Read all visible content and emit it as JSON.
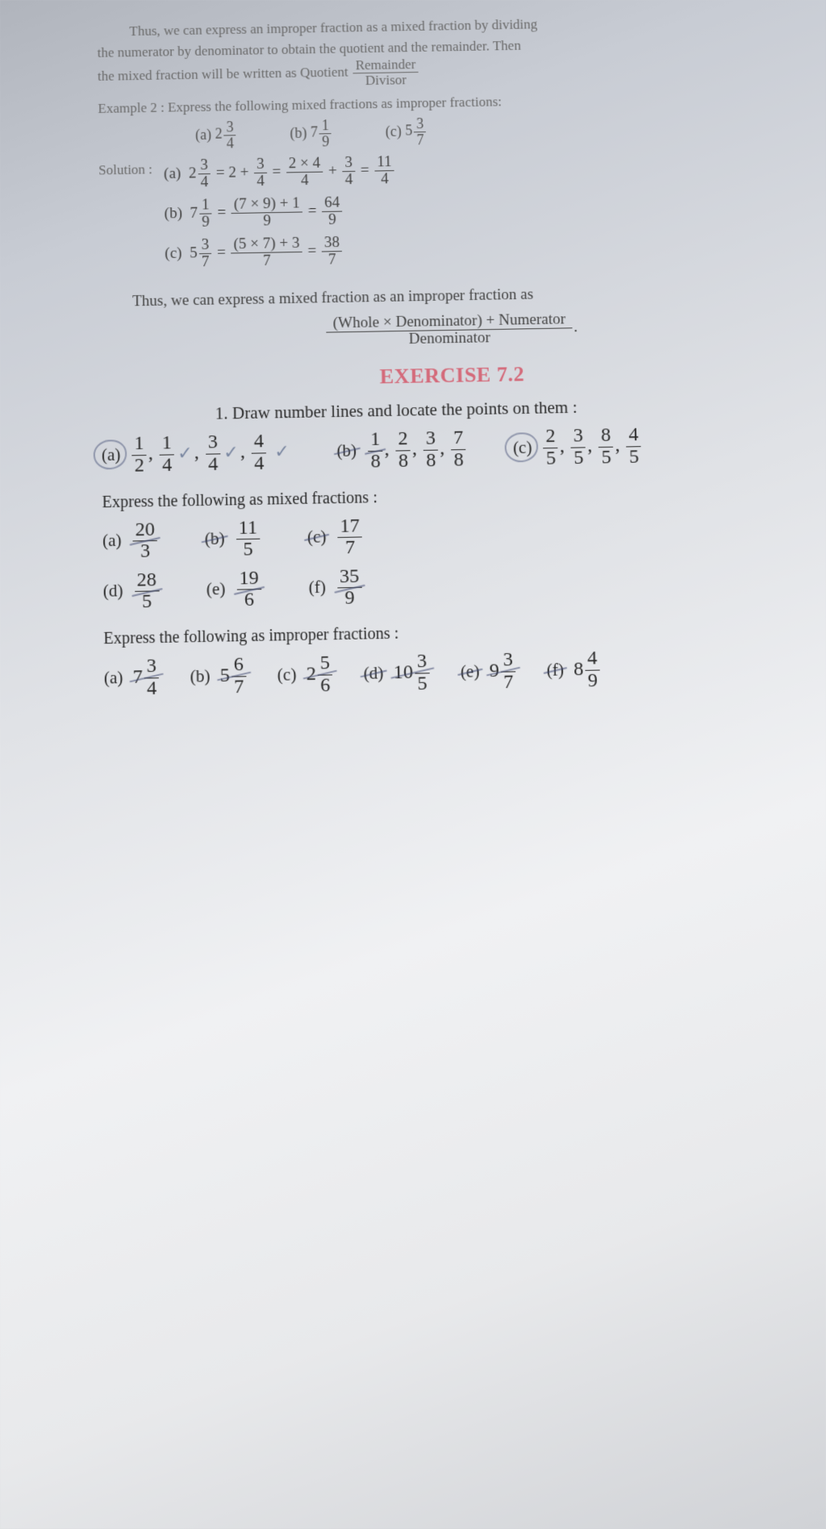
{
  "intro": {
    "line1": "Thus, we can express an improper fraction as a mixed fraction by dividing",
    "line2": "the numerator by denominator to obtain the quotient and the remainder. Then",
    "line3": "the mixed fraction will be written as Quotient",
    "rem": "Remainder",
    "div": "Divisor"
  },
  "example2": {
    "label": "Example 2 : Express the following mixed fractions as improper fractions:",
    "opts": {
      "a": {
        "lab": "(a)",
        "whole": "2",
        "num": "3",
        "den": "4"
      },
      "b": {
        "lab": "(b)",
        "whole": "7",
        "num": "1",
        "den": "9"
      },
      "c": {
        "lab": "(c)",
        "whole": "5",
        "num": "3",
        "den": "7"
      }
    }
  },
  "solution": {
    "label": "Solution :",
    "a": {
      "lab": "(a)",
      "lhsW": "2",
      "lhsN": "3",
      "lhsD": "4",
      "mid1": "2 +",
      "mid1N": "3",
      "mid1D": "4",
      "mid2N": "2 × 4",
      "mid2D": "4",
      "plus": "+",
      "mid3N": "3",
      "mid3D": "4",
      "eq": "=",
      "resN": "11",
      "resD": "4"
    },
    "b": {
      "lab": "(b)",
      "lhsW": "7",
      "lhsN": "1",
      "lhsD": "9",
      "midN": "(7 × 9) + 1",
      "midD": "9",
      "eq": "=",
      "resN": "64",
      "resD": "9"
    },
    "c": {
      "lab": "(c)",
      "lhsW": "5",
      "lhsN": "3",
      "lhsD": "7",
      "midN": "(5 × 7) + 3",
      "midD": "7",
      "eq": "=",
      "resN": "38",
      "resD": "7"
    }
  },
  "thus": {
    "line1": "Thus, we can express a mixed fraction as an improper fraction as",
    "formulaN": "(Whole × Denominator) + Numerator",
    "formulaD": "Denominator",
    "dot": "."
  },
  "exercise": {
    "title": "EXERCISE 7.2"
  },
  "q1": {
    "text": "1.   Draw number lines and locate the points on them :",
    "setA": {
      "lab": "(a)",
      "f1n": "1",
      "f1d": "2",
      "f2n": "1",
      "f2d": "4",
      "f3n": "3",
      "f3d": "4",
      "f4n": "4",
      "f4d": "4"
    },
    "setB": {
      "lab": "(b)",
      "f1n": "1",
      "f1d": "8",
      "f2n": "2",
      "f2d": "8",
      "f3n": "3",
      "f3d": "8",
      "f4n": "7",
      "f4d": "8"
    },
    "setC": {
      "lab": "(c)",
      "f1n": "2",
      "f1d": "5",
      "f2n": "3",
      "f2d": "5",
      "f3n": "8",
      "f3d": "5",
      "f4n": "4",
      "f4d": "5"
    }
  },
  "q2": {
    "text": "Express the following as mixed fractions :",
    "a": {
      "lab": "(a)",
      "n": "20",
      "d": "3"
    },
    "b": {
      "lab": "(b)",
      "n": "11",
      "d": "5"
    },
    "c": {
      "lab": "(c)",
      "n": "17",
      "d": "7"
    },
    "d": {
      "lab": "(d)",
      "n": "28",
      "d": "5"
    },
    "e": {
      "lab": "(e)",
      "n": "19",
      "d": "6"
    },
    "f": {
      "lab": "(f)",
      "n": "35",
      "d": "9"
    }
  },
  "q3": {
    "text": "Express the following as improper fractions :",
    "a": {
      "lab": "(a)",
      "w": "7",
      "n": "3",
      "d": "4"
    },
    "b": {
      "lab": "(b)",
      "w": "5",
      "n": "6",
      "d": "7"
    },
    "c": {
      "lab": "(c)",
      "w": "2",
      "n": "5",
      "d": "6"
    },
    "d": {
      "lab": "(d)",
      "w": "10",
      "n": "3",
      "d": "5"
    },
    "e": {
      "lab": "(e)",
      "w": "9",
      "n": "3",
      "d": "7"
    },
    "f": {
      "lab": "(f)",
      "w": "8",
      "n": "4",
      "d": "9"
    }
  }
}
